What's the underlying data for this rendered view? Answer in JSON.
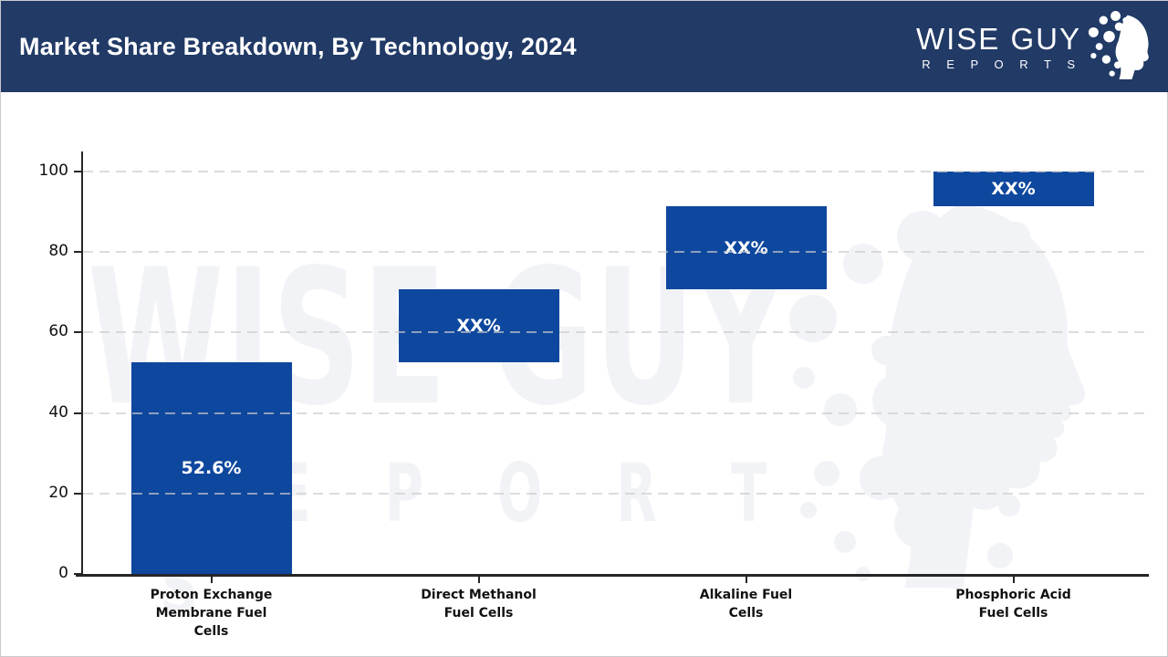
{
  "header": {
    "title": "Market Share Breakdown, By Technology, 2024",
    "logo_line1": "WISE GUY",
    "logo_line2": "R E P O R T S"
  },
  "watermark": {
    "line1": "WISE GUY",
    "line2": "R E P O R T S"
  },
  "colors": {
    "header_bg": "#213a66",
    "bar_blue": "#0e479e",
    "axis": "#262626",
    "gridline": "#cbcbce",
    "watermark": "#f2f3f6"
  },
  "chart_data": {
    "type": "bar",
    "subtype": "waterfall",
    "title": "Market Share Breakdown, By Technology, 2024",
    "categories": [
      "Proton Exchange Membrane Fuel Cells",
      "Direct Methanol Fuel Cells",
      "Alkaline Fuel Cells",
      "Phosphoric Acid Fuel Cells"
    ],
    "category_lines": [
      [
        "Proton Exchange",
        "Membrane Fuel",
        "Cells"
      ],
      [
        "Direct Methanol",
        "Fuel Cells"
      ],
      [
        "Alkaline Fuel",
        "Cells"
      ],
      [
        "Phosphoric Acid",
        "Fuel Cells"
      ]
    ],
    "segments": [
      {
        "name": "Proton Exchange Membrane Fuel Cells",
        "label": "52.6%",
        "start": 0,
        "end": 52.6
      },
      {
        "name": "Direct Methanol Fuel Cells",
        "label": "XX%",
        "start": 52.6,
        "end": 70.7
      },
      {
        "name": "Alkaline Fuel Cells",
        "label": "XX%",
        "start": 70.7,
        "end": 91.3
      },
      {
        "name": "Phosphoric Acid Fuel Cells",
        "label": "XX%",
        "start": 91.3,
        "end": 100
      }
    ],
    "yticks": [
      0,
      20,
      40,
      60,
      80,
      100
    ],
    "ylim": [
      0,
      105
    ],
    "ylabel": "",
    "xlabel": "",
    "grid": "horizontal-dashed",
    "legend": "none",
    "bar_color": "#0e479e",
    "value_labels_inside": true
  }
}
